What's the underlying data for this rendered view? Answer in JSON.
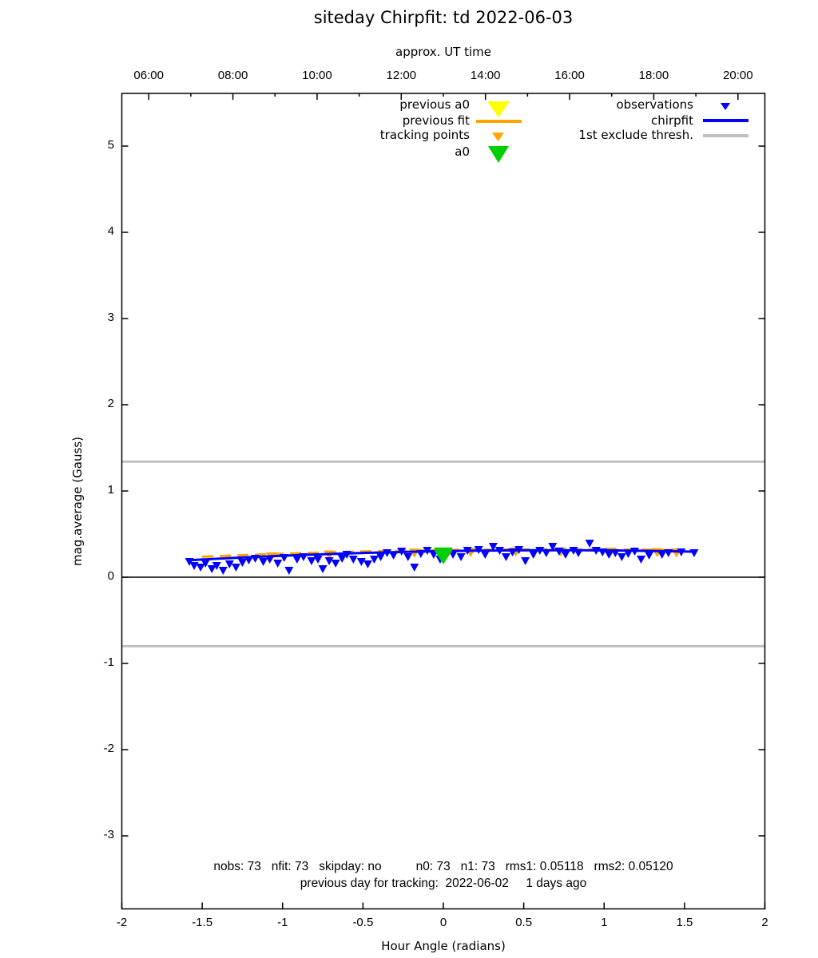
{
  "title": "siteday Chirpfit:  td  2022-06-03",
  "colors": {
    "observations": "#0000ff",
    "chirpfit": "#0000ff",
    "previous_fit": "#ffa500",
    "tracking_points": "#ffa500",
    "previous_a0": "#ffff00",
    "a0": "#00d000",
    "exclude_threshold": "#c0c0c0",
    "zero_line": "#000000",
    "frame": "#000000",
    "background": "#ffffff"
  },
  "legend": {
    "left": [
      {
        "label": "previous a0",
        "marker": "triangle-down-large",
        "color": "#ffff00"
      },
      {
        "label": "previous fit",
        "marker": "line",
        "color": "#ffa500"
      },
      {
        "label": "tracking points",
        "marker": "triangle-down-small",
        "color": "#ffa500"
      },
      {
        "label": "a0",
        "marker": "triangle-down-large",
        "color": "#00d000"
      }
    ],
    "right": [
      {
        "label": "observations",
        "marker": "triangle-down-small",
        "color": "#0000ff"
      },
      {
        "label": "chirpfit",
        "marker": "line",
        "color": "#0000ff"
      },
      {
        "label": "1st exclude thresh.",
        "marker": "line",
        "color": "#c0c0c0"
      }
    ]
  },
  "stats": {
    "line1": "nobs: 73   nfit: 73   skipday: no          n0: 73   n1: 73   rms1: 0.05118   rms2: 0.05120",
    "line2": "previous day for tracking:  2022-06-02     1 days ago"
  },
  "chart_data": {
    "type": "scatter",
    "title": "siteday Chirpfit:  td  2022-06-03",
    "xlabel": "Hour Angle (radians)",
    "x2label": "approx. UT time",
    "ylabel": "mag.average (Gauss)",
    "xlim": [
      -2,
      2
    ],
    "ylim": [
      -3.85,
      5.61
    ],
    "x_ticks": [
      {
        "v": -2,
        "label": "-2"
      },
      {
        "v": -1.5,
        "label": "-1.5"
      },
      {
        "v": -1,
        "label": "-1"
      },
      {
        "v": -0.5,
        "label": "-0.5"
      },
      {
        "v": 0,
        "label": "0"
      },
      {
        "v": 0.5,
        "label": "0.5"
      },
      {
        "v": 1,
        "label": "1"
      },
      {
        "v": 1.5,
        "label": "1.5"
      },
      {
        "v": 2,
        "label": "2"
      }
    ],
    "y_ticks": [
      {
        "v": -3,
        "label": "-3"
      },
      {
        "v": -2,
        "label": "-2"
      },
      {
        "v": -1,
        "label": "-1"
      },
      {
        "v": 0,
        "label": "0"
      },
      {
        "v": 1,
        "label": "1"
      },
      {
        "v": 2,
        "label": "2"
      },
      {
        "v": 3,
        "label": "3"
      },
      {
        "v": 4,
        "label": "4"
      },
      {
        "v": 5,
        "label": "5"
      }
    ],
    "time_ticks_major": [
      {
        "hour": 6,
        "label": "06:00"
      },
      {
        "hour": 8,
        "label": "08:00"
      },
      {
        "hour": 10,
        "label": "10:00"
      },
      {
        "hour": 12,
        "label": "12:00"
      },
      {
        "hour": 14,
        "label": "14:00"
      },
      {
        "hour": 16,
        "label": "16:00"
      },
      {
        "hour": 18,
        "label": "18:00"
      },
      {
        "hour": 20,
        "label": "20:00"
      }
    ],
    "time_ticks_minor_hours": [
      7,
      9,
      11,
      13,
      15,
      17,
      19
    ],
    "x2_mapping": {
      "ut_hour_at_ha0": 13.0,
      "hours_per_radian": 3.8197
    },
    "grid": false,
    "legend_position": "top-inside",
    "series": [
      {
        "name": "observations",
        "type": "scatter",
        "marker": "triangle-down",
        "color": "#0000ff",
        "points": [
          [
            -1.58,
            0.185
          ],
          [
            -1.55,
            0.139
          ],
          [
            -1.51,
            0.12
          ],
          [
            -1.48,
            0.167
          ],
          [
            -1.44,
            0.102
          ],
          [
            -1.41,
            0.139
          ],
          [
            -1.37,
            0.083
          ],
          [
            -1.33,
            0.157
          ],
          [
            -1.29,
            0.12
          ],
          [
            -1.25,
            0.176
          ],
          [
            -1.21,
            0.204
          ],
          [
            -1.17,
            0.222
          ],
          [
            -1.12,
            0.185
          ],
          [
            -1.08,
            0.213
          ],
          [
            -1.03,
            0.167
          ],
          [
            -0.99,
            0.231
          ],
          [
            -0.96,
            0.083
          ],
          [
            -0.91,
            0.213
          ],
          [
            -0.87,
            0.241
          ],
          [
            -0.82,
            0.194
          ],
          [
            -0.78,
            0.213
          ],
          [
            -0.75,
            0.102
          ],
          [
            -0.71,
            0.194
          ],
          [
            -0.67,
            0.167
          ],
          [
            -0.63,
            0.222
          ],
          [
            -0.6,
            0.269
          ],
          [
            -0.56,
            0.213
          ],
          [
            -0.51,
            0.185
          ],
          [
            -0.47,
            0.157
          ],
          [
            -0.43,
            0.213
          ],
          [
            -0.39,
            0.241
          ],
          [
            -0.35,
            0.287
          ],
          [
            -0.31,
            0.259
          ],
          [
            -0.26,
            0.306
          ],
          [
            -0.22,
            0.241
          ],
          [
            -0.18,
            0.12
          ],
          [
            -0.14,
            0.278
          ],
          [
            -0.1,
            0.315
          ],
          [
            -0.06,
            0.269
          ],
          [
            -0.02,
            0.213
          ],
          [
            0.06,
            0.269
          ],
          [
            0.11,
            0.241
          ],
          [
            0.15,
            0.315
          ],
          [
            0.22,
            0.324
          ],
          [
            0.26,
            0.269
          ],
          [
            0.31,
            0.361
          ],
          [
            0.35,
            0.315
          ],
          [
            0.39,
            0.241
          ],
          [
            0.43,
            0.296
          ],
          [
            0.47,
            0.324
          ],
          [
            0.51,
            0.194
          ],
          [
            0.56,
            0.269
          ],
          [
            0.6,
            0.315
          ],
          [
            0.64,
            0.287
          ],
          [
            0.68,
            0.361
          ],
          [
            0.72,
            0.306
          ],
          [
            0.76,
            0.269
          ],
          [
            0.81,
            0.315
          ],
          [
            0.84,
            0.287
          ],
          [
            0.91,
            0.398
          ],
          [
            0.95,
            0.315
          ],
          [
            0.99,
            0.296
          ],
          [
            1.03,
            0.269
          ],
          [
            1.07,
            0.287
          ],
          [
            1.11,
            0.241
          ],
          [
            1.15,
            0.278
          ],
          [
            1.19,
            0.306
          ],
          [
            1.23,
            0.213
          ],
          [
            1.28,
            0.259
          ],
          [
            1.36,
            0.269
          ],
          [
            1.4,
            0.287
          ],
          [
            1.48,
            0.296
          ],
          [
            1.56,
            0.287
          ]
        ]
      },
      {
        "name": "chirpfit",
        "type": "quadratic-line",
        "color": "#0000ff",
        "coeffs": {
          "c0": 0.302,
          "c1": 0.031,
          "c2": -0.0225
        },
        "x_range": [
          -1.58,
          1.57
        ]
      },
      {
        "name": "previous fit",
        "type": "quadratic-line",
        "dashed": true,
        "color": "#ffa500",
        "coeffs": {
          "c0": 0.315,
          "c1": 0.025,
          "c2": -0.018
        },
        "x_range": [
          -1.5,
          1.47
        ]
      },
      {
        "name": "tracking points",
        "type": "scatter",
        "marker": "triangle-down-small",
        "color": "#ffa500",
        "points": [
          [
            -1.07,
            0.247
          ],
          [
            -0.71,
            0.268
          ],
          [
            -0.18,
            0.29
          ],
          [
            0.17,
            0.299
          ],
          [
            0.45,
            0.303
          ],
          [
            0.73,
            0.304
          ],
          [
            1.04,
            0.302
          ],
          [
            1.33,
            0.296
          ],
          [
            1.45,
            0.293
          ]
        ]
      },
      {
        "name": "previous a0",
        "type": "point",
        "marker": "triangle-down-large",
        "color": "#ffff00",
        "point": [
          0,
          0.28
        ]
      },
      {
        "name": "a0",
        "type": "point",
        "marker": "triangle-down-large",
        "color": "#00d000",
        "point": [
          0,
          0.28
        ]
      },
      {
        "name": "1st exclude thresh.",
        "type": "hline",
        "color": "#c0c0c0",
        "values": [
          1.34,
          -0.8
        ]
      },
      {
        "name": "zero line",
        "type": "hline",
        "color": "#000000",
        "values": [
          0
        ]
      }
    ]
  }
}
